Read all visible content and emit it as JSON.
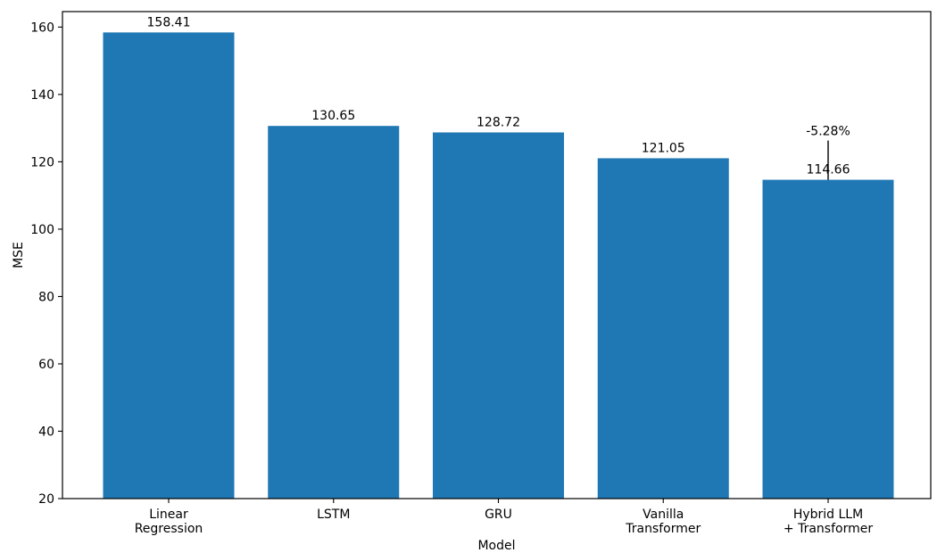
{
  "chart_data": {
    "type": "bar",
    "categories": [
      "Linear\nRegression",
      "LSTM",
      "GRU",
      "Vanilla\nTransformer",
      "Hybrid LLM\n+ Transformer"
    ],
    "values": [
      158.41,
      130.65,
      128.72,
      121.05,
      114.66
    ],
    "value_label_decimals": 2,
    "title": "",
    "xlabel": "Model",
    "ylabel": "MSE",
    "ylim": [
      20,
      164.6
    ],
    "yticks": [
      20,
      40,
      60,
      80,
      100,
      120,
      140,
      160
    ],
    "grid": false,
    "legend_position": "none",
    "bar_color": "#1f77b4",
    "axis_color": "#000000",
    "text_color": "#000000",
    "background_color": "#ffffff",
    "annotation": {
      "text": "-5.28%",
      "category_index": 4,
      "has_line": true
    }
  }
}
